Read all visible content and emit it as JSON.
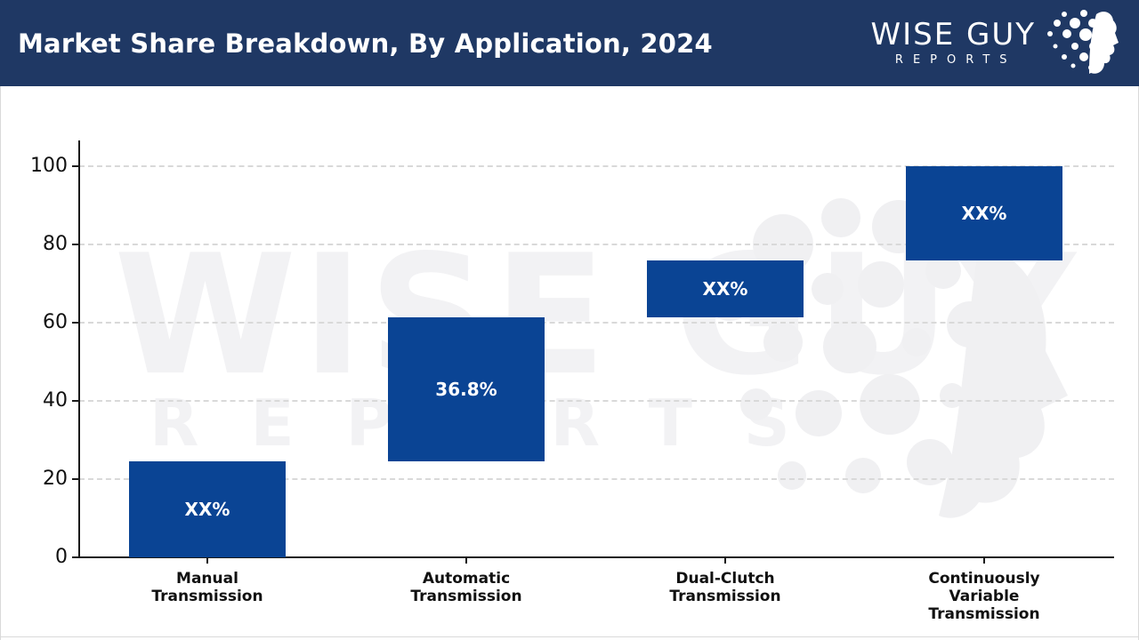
{
  "header": {
    "title": "Market Share Breakdown, By Application, 2024",
    "logo": {
      "line1": "WISE GUY",
      "line2": "REPORTS"
    }
  },
  "watermark": {
    "line1": "WISE GUY",
    "line2": "REPORTS"
  },
  "colors": {
    "header_bg": "#1f3864",
    "bar_blue": "#0a4494",
    "grid": "#d9d9d9",
    "axis": "#1a1a1a",
    "watermark": "#f2f2f4"
  },
  "chart_data": {
    "type": "bar",
    "variant": "floating-waterfall",
    "title": "Market Share Breakdown, By Application, 2024",
    "categories": [
      "Manual Transmission",
      "Automatic Transmission",
      "Dual-Clutch Transmission",
      "Continuously Variable Transmission"
    ],
    "bars": [
      {
        "category": "Manual Transmission",
        "start": 0,
        "end": 24.5,
        "label": "XX%"
      },
      {
        "category": "Automatic Transmission",
        "start": 24.5,
        "end": 61.3,
        "label": "36.8%"
      },
      {
        "category": "Dual-Clutch Transmission",
        "start": 61.3,
        "end": 75.9,
        "label": "XX%"
      },
      {
        "category": "Continuously Variable Transmission",
        "start": 75.9,
        "end": 100,
        "label": "XX%"
      }
    ],
    "xlabel": "",
    "ylabel": "",
    "yticks": [
      0,
      20,
      40,
      60,
      80,
      100
    ],
    "ylim": [
      0,
      105
    ],
    "grid": "dashed-horizontal",
    "legend": "none",
    "bar_color": "#0a4494"
  }
}
